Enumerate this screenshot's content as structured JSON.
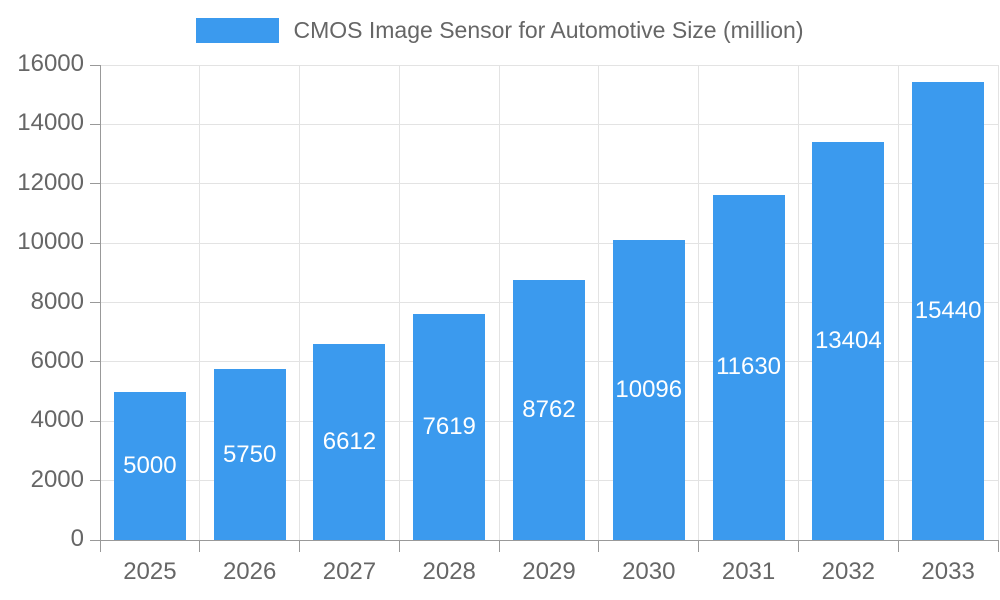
{
  "chart_data": {
    "type": "bar",
    "title": "CMOS Image Sensor for Automotive Size (million)",
    "categories": [
      "2025",
      "2026",
      "2027",
      "2028",
      "2029",
      "2030",
      "2031",
      "2032",
      "2033"
    ],
    "values": [
      5000,
      5750,
      6612,
      7619,
      8762,
      10096,
      11630,
      13404,
      15440
    ],
    "xlabel": "",
    "ylabel": "",
    "ylim": [
      0,
      16000
    ],
    "ytick_step": 2000,
    "yticks": [
      0,
      2000,
      4000,
      6000,
      8000,
      10000,
      12000,
      14000,
      16000
    ],
    "grid": true,
    "legend_position": "top-center",
    "legend_entries": [
      "CMOS Image Sensor for Automotive Size (million)"
    ],
    "value_labels_shown": true,
    "colors": {
      "bar": "#3b9aee",
      "value_label": "#ffffff",
      "axis_text": "#666666",
      "legend_text": "#666666",
      "gridline": "#e3e3e3",
      "axis_line": "#999999",
      "background": "#ffffff"
    }
  }
}
